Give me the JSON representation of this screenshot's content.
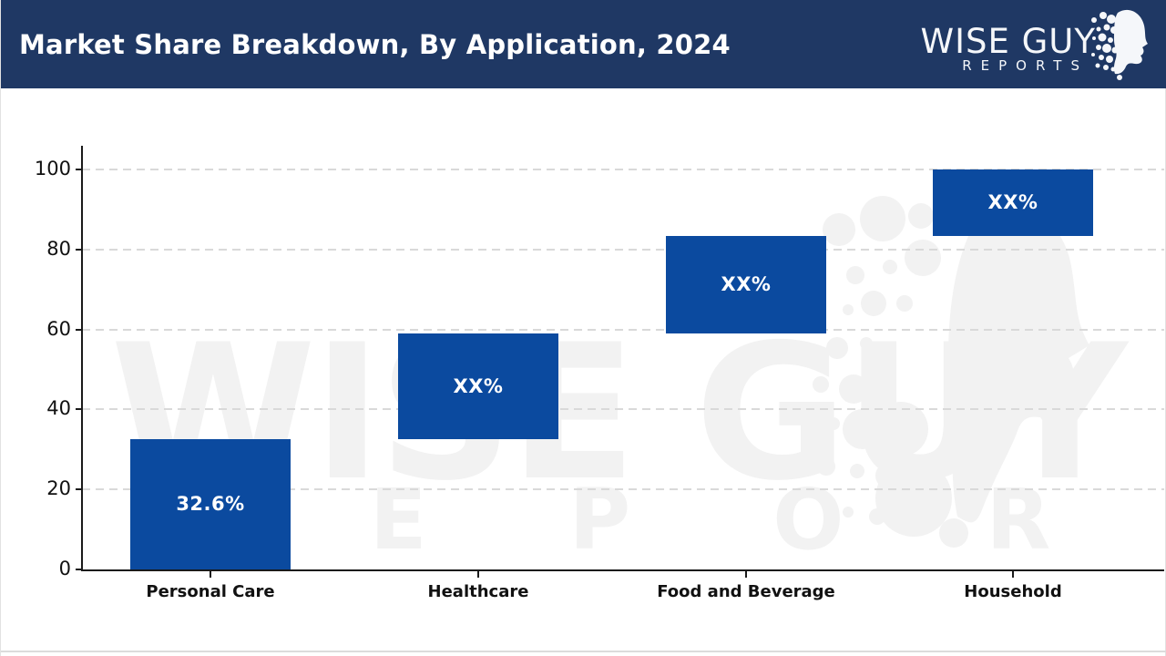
{
  "header": {
    "title": "Market Share Breakdown, By Application, 2024",
    "logo": {
      "line1": "WISE GUY",
      "line2": "REPORTS"
    }
  },
  "watermark": {
    "line1": "WISE GUY",
    "line2": "REPORTS"
  },
  "colors": {
    "header_bg": "#1f3864",
    "bar": "#0b4a9f",
    "grid": "#d9d9d9",
    "axis": "#1a1a1a",
    "watermark": "#f2f2f2",
    "title_text": "#ffffff",
    "bar_label_text": "#ffffff"
  },
  "chart_data": {
    "type": "bar",
    "subtype": "floating-segment-breakdown",
    "title": "Market Share Breakdown, By Application, 2024",
    "categories": [
      "Personal Care",
      "Healthcare",
      "Food and Beverage",
      "Household"
    ],
    "segments": [
      {
        "category": "Personal Care",
        "start": 0,
        "end": 32.6,
        "label": "32.6%"
      },
      {
        "category": "Healthcare",
        "start": 32.6,
        "end": 59.0,
        "label": "XX%"
      },
      {
        "category": "Food and Beverage",
        "start": 59.0,
        "end": 83.4,
        "label": "XX%"
      },
      {
        "category": "Household",
        "start": 83.4,
        "end": 100,
        "label": "XX%"
      }
    ],
    "yticks": [
      0,
      20,
      40,
      60,
      80,
      100
    ],
    "ylim": [
      0,
      105
    ],
    "xlabel": "",
    "ylabel": "",
    "grid": "dashed-horizontal",
    "legend": "none"
  }
}
